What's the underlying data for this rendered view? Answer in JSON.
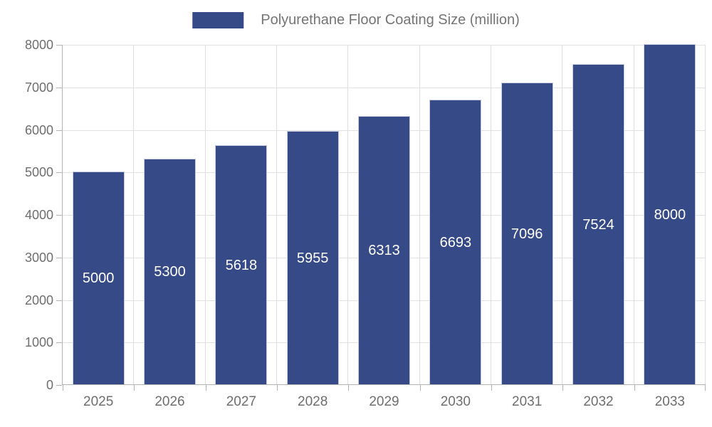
{
  "chart_data": {
    "type": "bar",
    "title": "Polyurethane Floor Coating Size (million)",
    "categories": [
      "2025",
      "2026",
      "2027",
      "2028",
      "2029",
      "2030",
      "2031",
      "2032",
      "2033"
    ],
    "values": [
      5000,
      5300,
      5618,
      5955,
      6313,
      6693,
      7096,
      7524,
      8000
    ],
    "series": [
      {
        "name": "Polyurethane Floor Coating Size (million)",
        "values": [
          5000,
          5300,
          5618,
          5955,
          6313,
          6693,
          7096,
          7524,
          8000
        ]
      }
    ],
    "xlabel": "",
    "ylabel": "",
    "ylim": [
      0,
      8000
    ],
    "ytick_step": 1000,
    "yticks": [
      0,
      1000,
      2000,
      3000,
      4000,
      5000,
      6000,
      7000,
      8000
    ],
    "grid": true,
    "legend_position": "top-center",
    "data_labels": "inside-center-white",
    "colors": {
      "bar": "#364a87",
      "bar_border": "#c9ccdf",
      "grid_horizontal": "#e2e2e2",
      "grid_vertical": "#dcdde6",
      "axis_line": "#b3b3b3",
      "axis_text": "#6e6e6e",
      "legend_text": "#757575",
      "value_text": "#ffffff"
    }
  },
  "legend": {
    "label": "Polyurethane Floor Coating Size (million)"
  }
}
